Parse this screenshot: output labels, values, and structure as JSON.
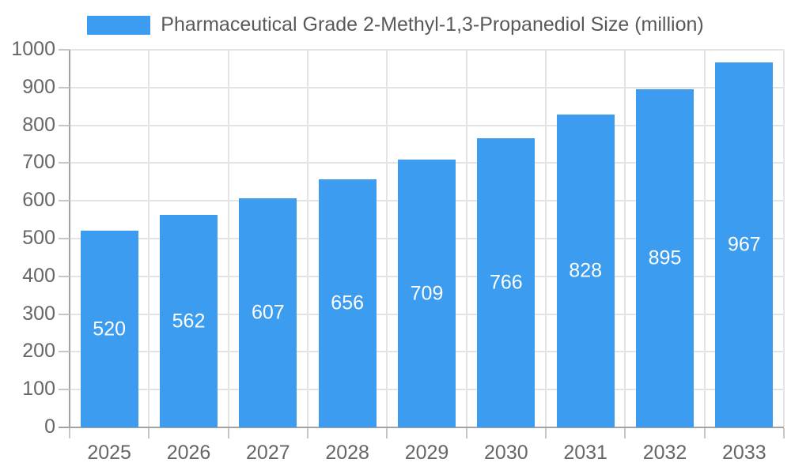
{
  "legend": {
    "label": "Pharmaceutical Grade 2-Methyl-1,3-Propanediol Size (million)"
  },
  "colors": {
    "bar": "#3B9CF0",
    "grid": "#e4e4e4",
    "axis": "#a3a3a3",
    "tick": "#c6c6c6",
    "axis_label": "#666666",
    "legend_text": "#595959",
    "value_label": "#ffffff",
    "background": "#ffffff"
  },
  "chart_data": {
    "type": "bar",
    "title": "Pharmaceutical Grade 2-Methyl-1,3-Propanediol Size (million)",
    "categories": [
      "2025",
      "2026",
      "2027",
      "2028",
      "2029",
      "2030",
      "2031",
      "2032",
      "2033"
    ],
    "values": [
      520,
      562,
      607,
      656,
      709,
      766,
      828,
      895,
      967
    ],
    "xlabel": "",
    "ylabel": "",
    "ylim": [
      0,
      1000
    ],
    "ytick_step": 100,
    "ytick_labels": [
      "0",
      "100",
      "200",
      "300",
      "400",
      "500",
      "600",
      "700",
      "800",
      "900",
      "1000"
    ],
    "grid": true,
    "legend_position": "top-center",
    "value_labels_position": "inside-center",
    "bar_color": "#3B9CF0"
  }
}
